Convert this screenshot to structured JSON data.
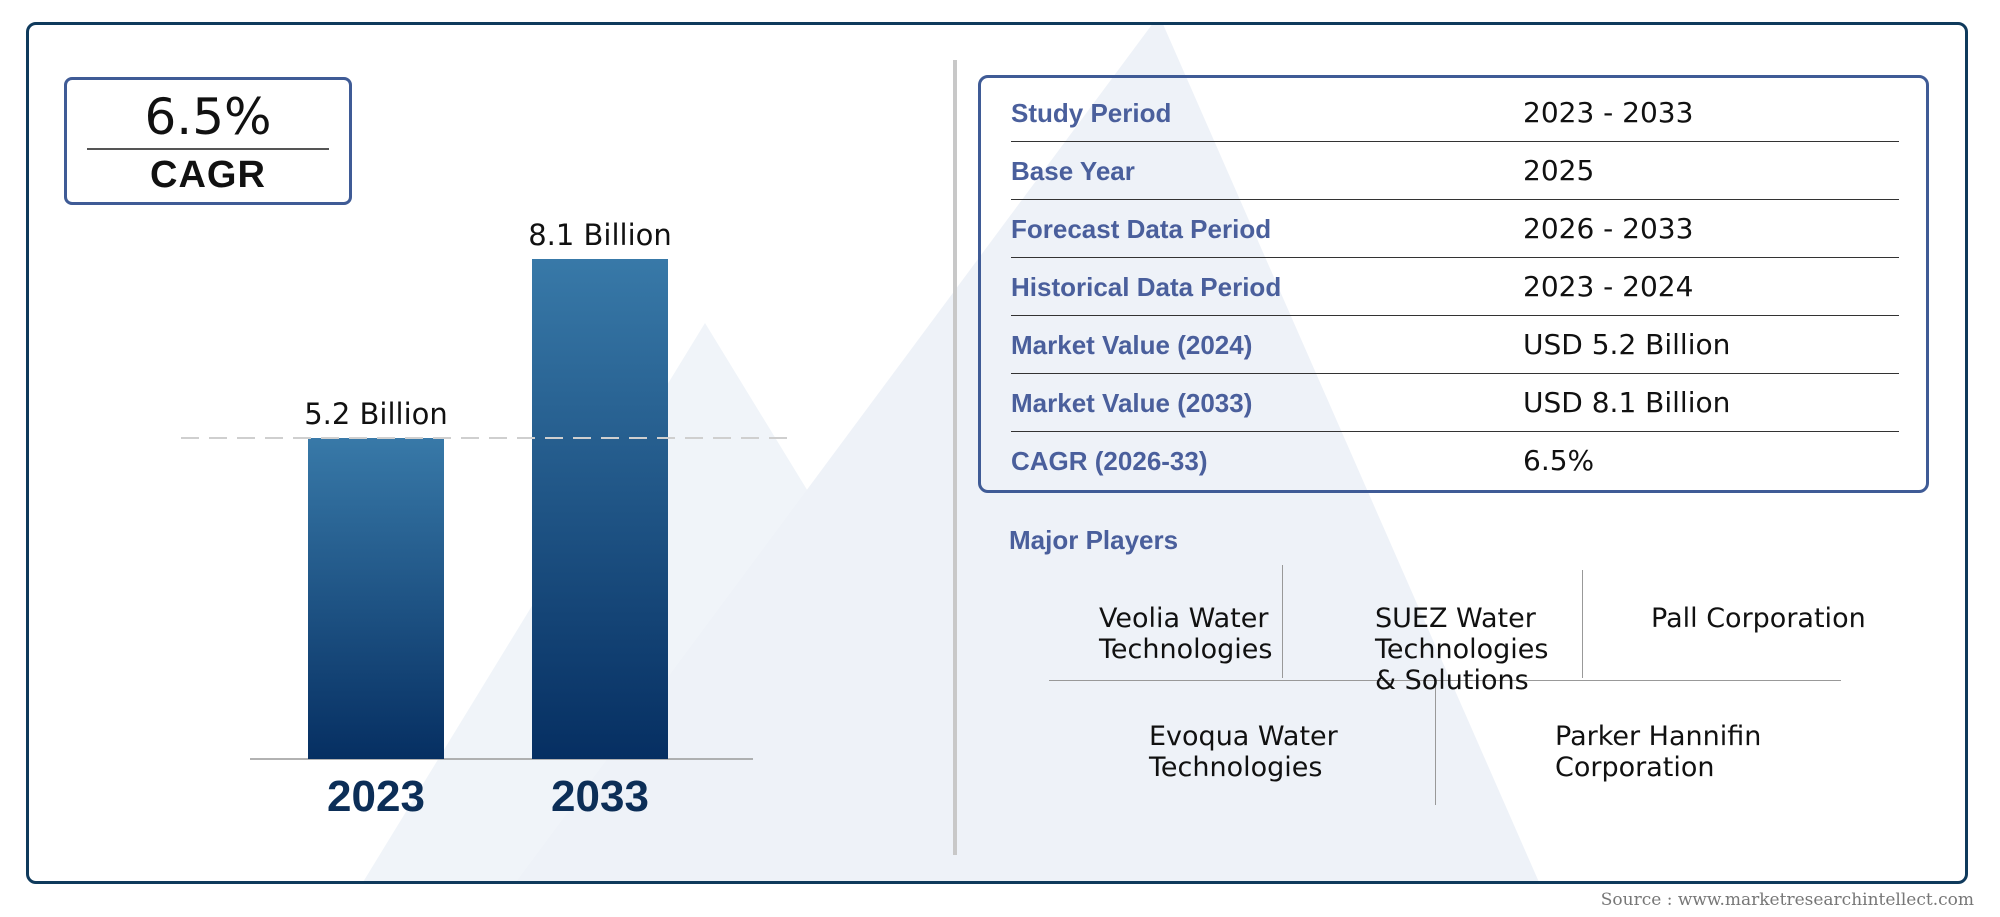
{
  "cagr": {
    "value": "6.5%",
    "label": "CAGR"
  },
  "chart_data": {
    "type": "bar",
    "categories": [
      "2023",
      "2033"
    ],
    "values": [
      5.2,
      8.1
    ],
    "value_labels": [
      "5.2 Billion",
      "8.1 Billion"
    ],
    "reference_line": 5.2,
    "bar_gradient": [
      "#3879a8",
      "#062f62"
    ],
    "axis_label_color": "#0c2e57",
    "ylim": [
      0,
      8.1
    ],
    "grid": false
  },
  "info_table": [
    {
      "label": "Study Period",
      "value": "2023 - 2033"
    },
    {
      "label": "Base Year",
      "value": "2025"
    },
    {
      "label": "Forecast Data Period",
      "value": "2026 - 2033"
    },
    {
      "label": "Historical Data Period",
      "value": "2023 - 2024"
    },
    {
      "label": "Market Value (2024)",
      "value": "USD 5.2 Billion"
    },
    {
      "label": "Market Value (2033)",
      "value": "USD 8.1 Billion"
    },
    {
      "label": "CAGR (2026-33)",
      "value": "6.5%"
    }
  ],
  "players": {
    "title": "Major Players",
    "names": [
      "Veolia Water Technologies",
      "SUEZ Water Technologies & Solutions",
      "Pall Corporation",
      "Evoqua Water Technologies",
      "Parker Hannifin Corporation"
    ]
  },
  "source": "Source : www.marketresearchintellect.com",
  "colors": {
    "frame": "#0f3a5c",
    "label_blue": "#4a5f9c",
    "watermark": "#eef2f8"
  }
}
